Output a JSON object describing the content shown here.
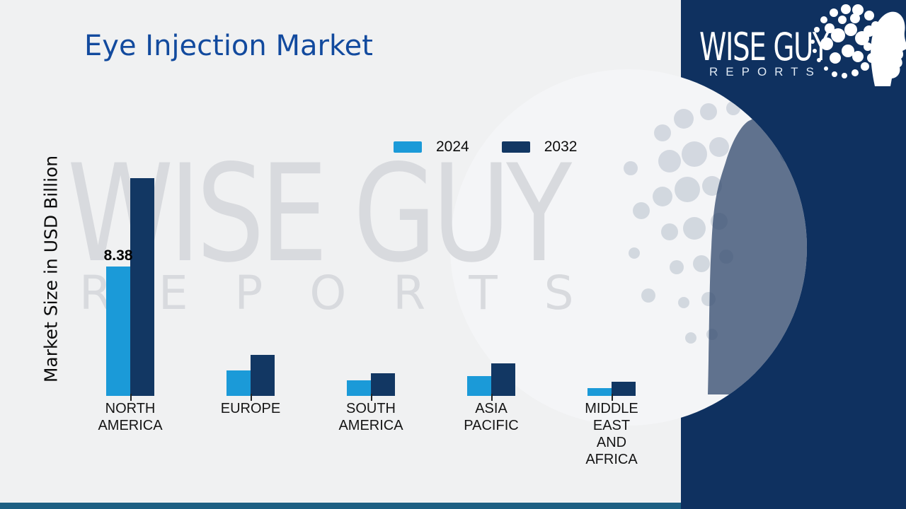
{
  "page": {
    "background_color": "#f0f1f2",
    "panel_color": "#0f3160",
    "bottom_bar_color": "#1d5f82"
  },
  "header": {
    "title": "Eye Injection Market",
    "title_color": "#124a9e"
  },
  "brand": {
    "name": "WISE GUY",
    "subname": "REPORTS",
    "face_icon": "face-profile-icon",
    "dots_icon": "dots-pattern-icon"
  },
  "watermark": {
    "line1": "WISE GUY",
    "line2": "REPORTS"
  },
  "chart_data": {
    "type": "bar",
    "title": "Eye Injection Market",
    "xlabel": "",
    "ylabel": "Market Size in USD Billion",
    "categories": [
      "NORTH\nAMERICA",
      "EUROPE",
      "SOUTH\nAMERICA",
      "ASIA\nPACIFIC",
      "MIDDLE\nEAST\nAND\nAFRICA"
    ],
    "series": [
      {
        "name": "2024",
        "color": "#1b9ad8",
        "values": [
          8.38,
          1.65,
          1.02,
          1.28,
          0.5
        ]
      },
      {
        "name": "2032",
        "color": "#123763",
        "values": [
          14.1,
          2.64,
          1.48,
          2.12,
          0.92
        ]
      }
    ],
    "annotation": {
      "text": "8.38",
      "series_index": 0,
      "category_index": 0
    },
    "legend_position": "top-right",
    "grid": false,
    "ylim": [
      0,
      15
    ]
  }
}
